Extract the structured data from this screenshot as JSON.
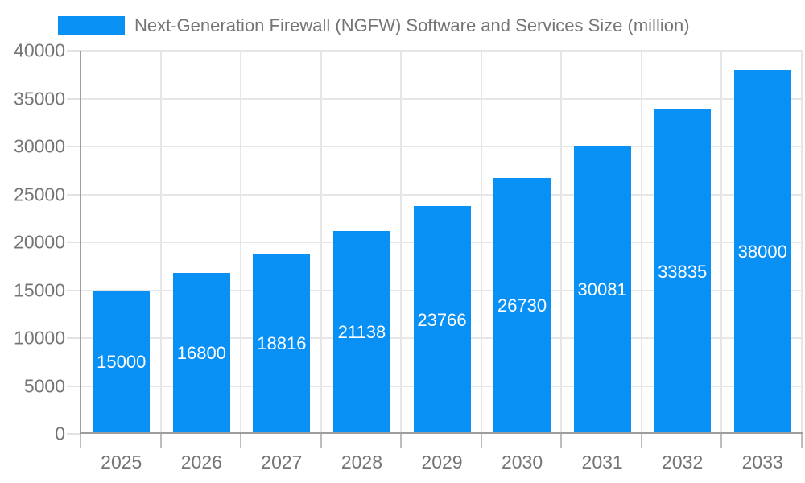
{
  "legend": {
    "label": "Next-Generation Firewall (NGFW) Software and Services Size (million)"
  },
  "colors": {
    "bar": "#0890f5",
    "text": "#757575",
    "axis": "#9e9e9e",
    "grid": "#e6e6e6",
    "ytick": "#e2e2e2",
    "xtick": "#bdbdbd",
    "bar_label": "#ffffff"
  },
  "chart_data": {
    "type": "bar",
    "title": "Next-Generation Firewall (NGFW) Software and Services Size (million)",
    "categories": [
      "2025",
      "2026",
      "2027",
      "2028",
      "2029",
      "2030",
      "2031",
      "2032",
      "2033"
    ],
    "values": [
      15000,
      16800,
      18816,
      21138,
      23766,
      26730,
      30081,
      33835,
      38000
    ],
    "bar_value_labels": [
      "15000",
      "16800",
      "18816",
      "21138",
      "23766",
      "26730",
      "30081",
      "33835",
      "38000"
    ],
    "xlabel": "",
    "ylabel": "",
    "ylim": [
      0,
      40000
    ],
    "ytick_step": 5000,
    "ytick_labels": [
      "0",
      "5000",
      "10000",
      "15000",
      "20000",
      "25000",
      "30000",
      "35000",
      "40000"
    ],
    "grid": true,
    "legend_position": "top-left",
    "bar_labels_inside": true,
    "bar_label_valign": "center"
  }
}
